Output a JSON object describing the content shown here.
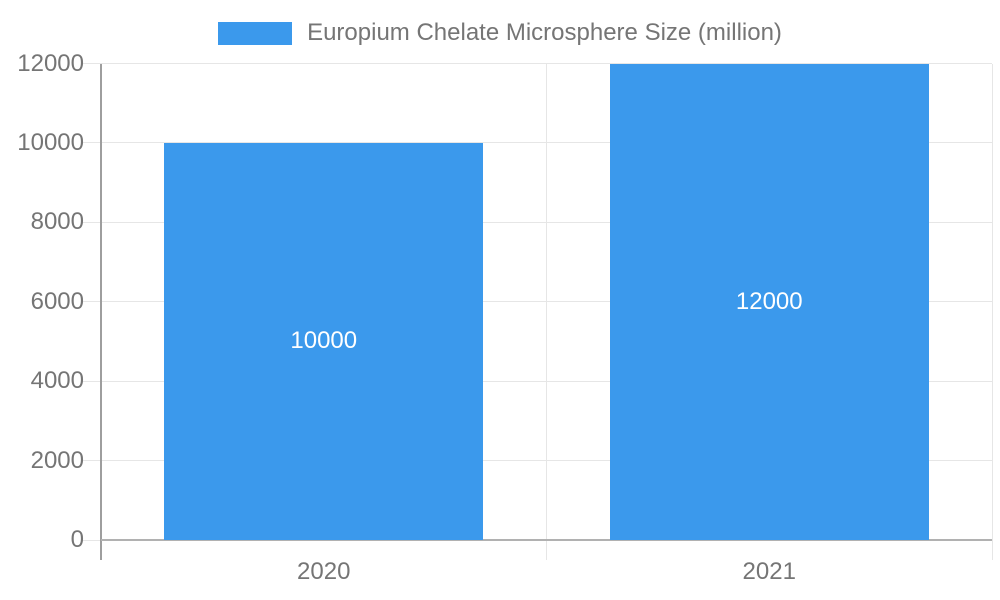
{
  "chart_data": {
    "type": "bar",
    "title": "Europium Chelate Microsphere Size (million)",
    "categories": [
      "2020",
      "2021"
    ],
    "series": [
      {
        "name": "Europium Chelate Microsphere Size (million)",
        "values": [
          10000,
          12000
        ]
      }
    ],
    "values": [
      10000,
      12000
    ],
    "bar_labels": [
      "10000",
      "12000"
    ],
    "xlabel": "",
    "ylabel": "",
    "ylim": [
      0,
      12000
    ],
    "yticks": [
      0,
      2000,
      4000,
      6000,
      8000,
      10000,
      12000
    ],
    "legend_position": "top",
    "grid": true,
    "colors": {
      "bar": "#3b99ec",
      "bar_label": "#ffffff",
      "axis_text": "#757575",
      "gridline": "#e6e6e6",
      "y_axis_line": "#9e9e9e",
      "x_baseline": "#b1b1b1"
    }
  }
}
